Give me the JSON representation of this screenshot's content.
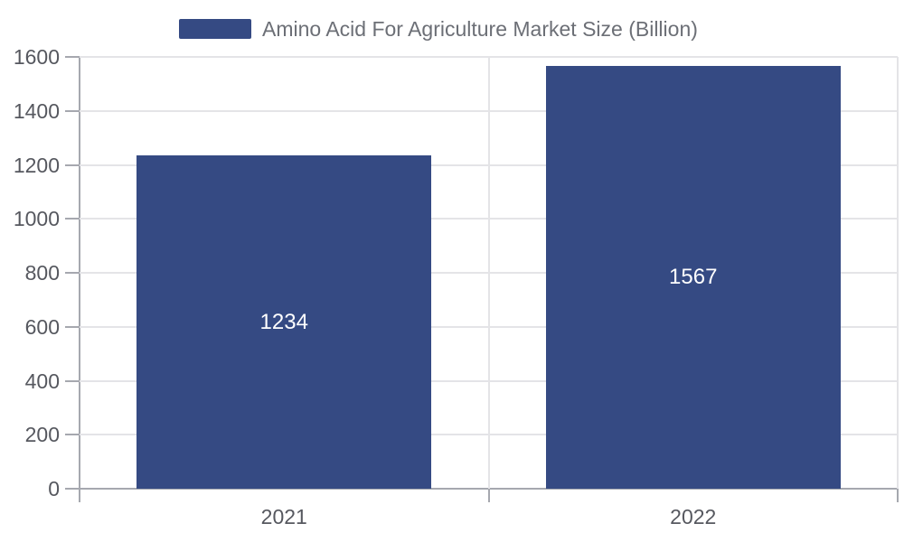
{
  "legend": {
    "label": "Amino Acid For Agriculture Market Size (Billion)"
  },
  "chart_data": {
    "type": "bar",
    "title": "Amino Acid For Agriculture Market Size (Billion)",
    "categories": [
      "2021",
      "2022"
    ],
    "series": [
      {
        "name": "Amino Acid For Agriculture Market Size (Billion)",
        "values": [
          1234,
          1567
        ]
      }
    ],
    "value_labels": [
      "1234",
      "1567"
    ],
    "xlabel": "",
    "ylabel": "",
    "ylim": [
      0,
      1600
    ],
    "ytick_step": 200,
    "ytick_labels": [
      "0",
      "200",
      "400",
      "600",
      "800",
      "1000",
      "1200",
      "1400",
      "1600"
    ],
    "grid": true,
    "legend_position": "top",
    "colors": {
      "bar": "#354a83",
      "grid_line": "#e4e4e7",
      "axis_line": "#a6a8af",
      "tick_label": "#56585f",
      "legend_text": "#6c6f76",
      "value_label": "#ffffff",
      "background": "#ffffff"
    }
  }
}
